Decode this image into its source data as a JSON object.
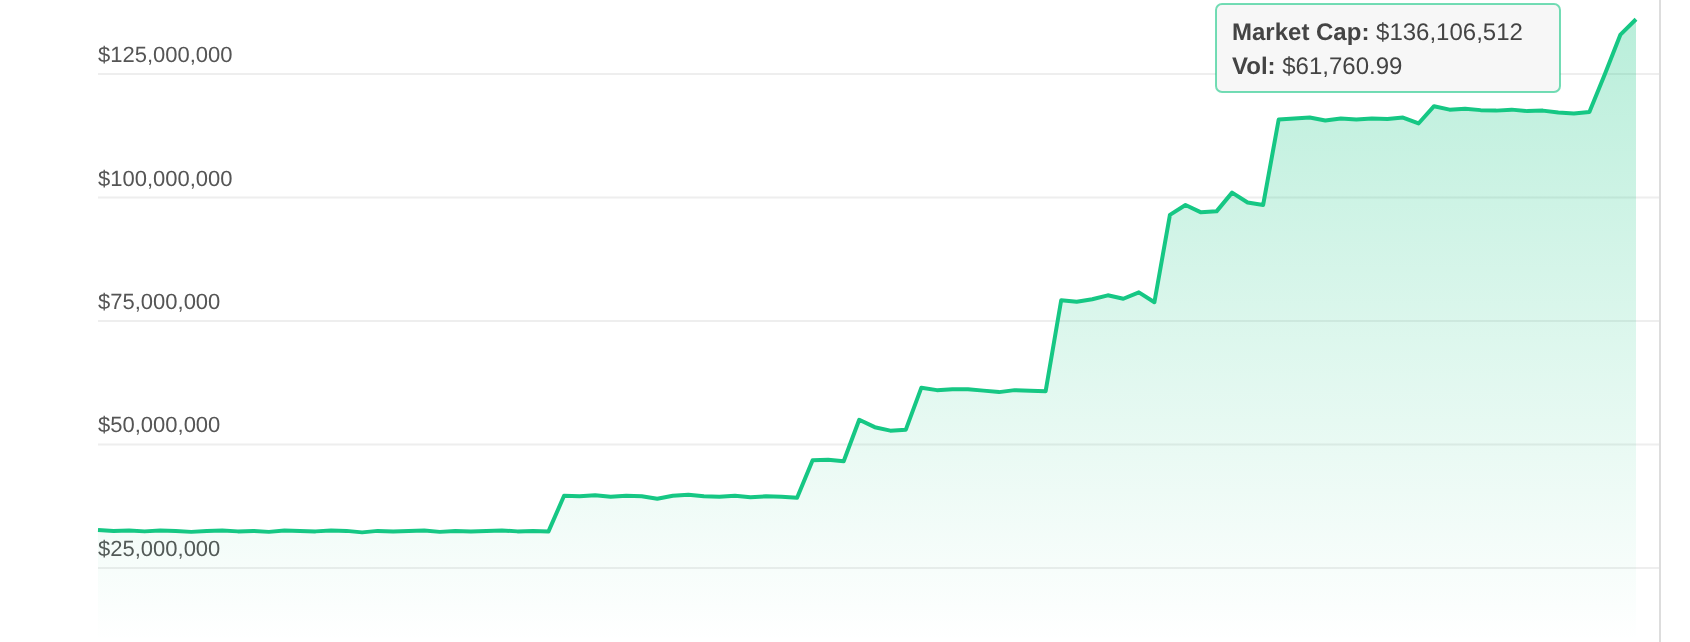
{
  "chart_data": {
    "type": "area",
    "categories": [
      null,
      null,
      null,
      null,
      null,
      null,
      null,
      null,
      null,
      null,
      null,
      null,
      null,
      null,
      null,
      null,
      null,
      null,
      null,
      null,
      null,
      null,
      null,
      null,
      null,
      null,
      null,
      null,
      null,
      null,
      null,
      null,
      null,
      null,
      null,
      null,
      null,
      null,
      null,
      null,
      null,
      null,
      null,
      null,
      null,
      null,
      null,
      null,
      null,
      null,
      null,
      null,
      null,
      null,
      null,
      null,
      null,
      null,
      null,
      null,
      null,
      null,
      null,
      null,
      null,
      null,
      null,
      null,
      null,
      null,
      null,
      null,
      null,
      null,
      null,
      null,
      null,
      null,
      null,
      null,
      null,
      null,
      null,
      null,
      null,
      null,
      null,
      null,
      null,
      null,
      null,
      null,
      null,
      null,
      null,
      null,
      null,
      null,
      null,
      null
    ],
    "series": [
      {
        "color": "#16c784",
        "values": [
          32700000,
          32500000,
          32600000,
          32400000,
          32600000,
          32500000,
          32300000,
          32500000,
          32600000,
          32400000,
          32500000,
          32300000,
          32600000,
          32500000,
          32400000,
          32600000,
          32500000,
          32200000,
          32500000,
          32400000,
          32500000,
          32600000,
          32300000,
          32500000,
          32400000,
          32500000,
          32600000,
          32400000,
          32500000,
          32400000,
          39600000,
          39500000,
          39700000,
          39400000,
          39600000,
          39500000,
          39000000,
          39600000,
          39800000,
          39500000,
          39400000,
          39600000,
          39300000,
          39500000,
          39400000,
          39200000,
          46800000,
          46900000,
          46600000,
          55000000,
          53500000,
          52800000,
          53000000,
          61500000,
          61000000,
          61200000,
          61200000,
          60900000,
          60600000,
          61000000,
          60900000,
          60800000,
          79200000,
          78900000,
          79400000,
          80200000,
          79500000,
          80800000,
          78800000,
          96500000,
          98500000,
          97000000,
          97200000,
          101000000,
          99000000,
          98500000,
          115800000,
          116000000,
          116200000,
          115600000,
          116000000,
          115800000,
          116000000,
          115900000,
          116200000,
          115000000,
          118500000,
          117800000,
          118000000,
          117700000,
          117600000,
          117800000,
          117500000,
          117600000,
          117200000,
          117000000,
          117300000,
          125000000,
          133000000,
          136100000
        ]
      }
    ],
    "ylim": [
      10000000,
      140000000
    ],
    "yticks": [
      {
        "value": 25000000,
        "label": "$25,000,000"
      },
      {
        "value": 50000000,
        "label": "$50,000,000"
      },
      {
        "value": 75000000,
        "label": "$75,000,000"
      },
      {
        "value": 100000000,
        "label": "$100,000,000"
      },
      {
        "value": 125000000,
        "label": "$125,000,000"
      }
    ],
    "tick_labels": "y",
    "grid": "y",
    "annotations": [
      "Market Cap: $136,106,512",
      "Vol: $61,760.99"
    ]
  }
}
